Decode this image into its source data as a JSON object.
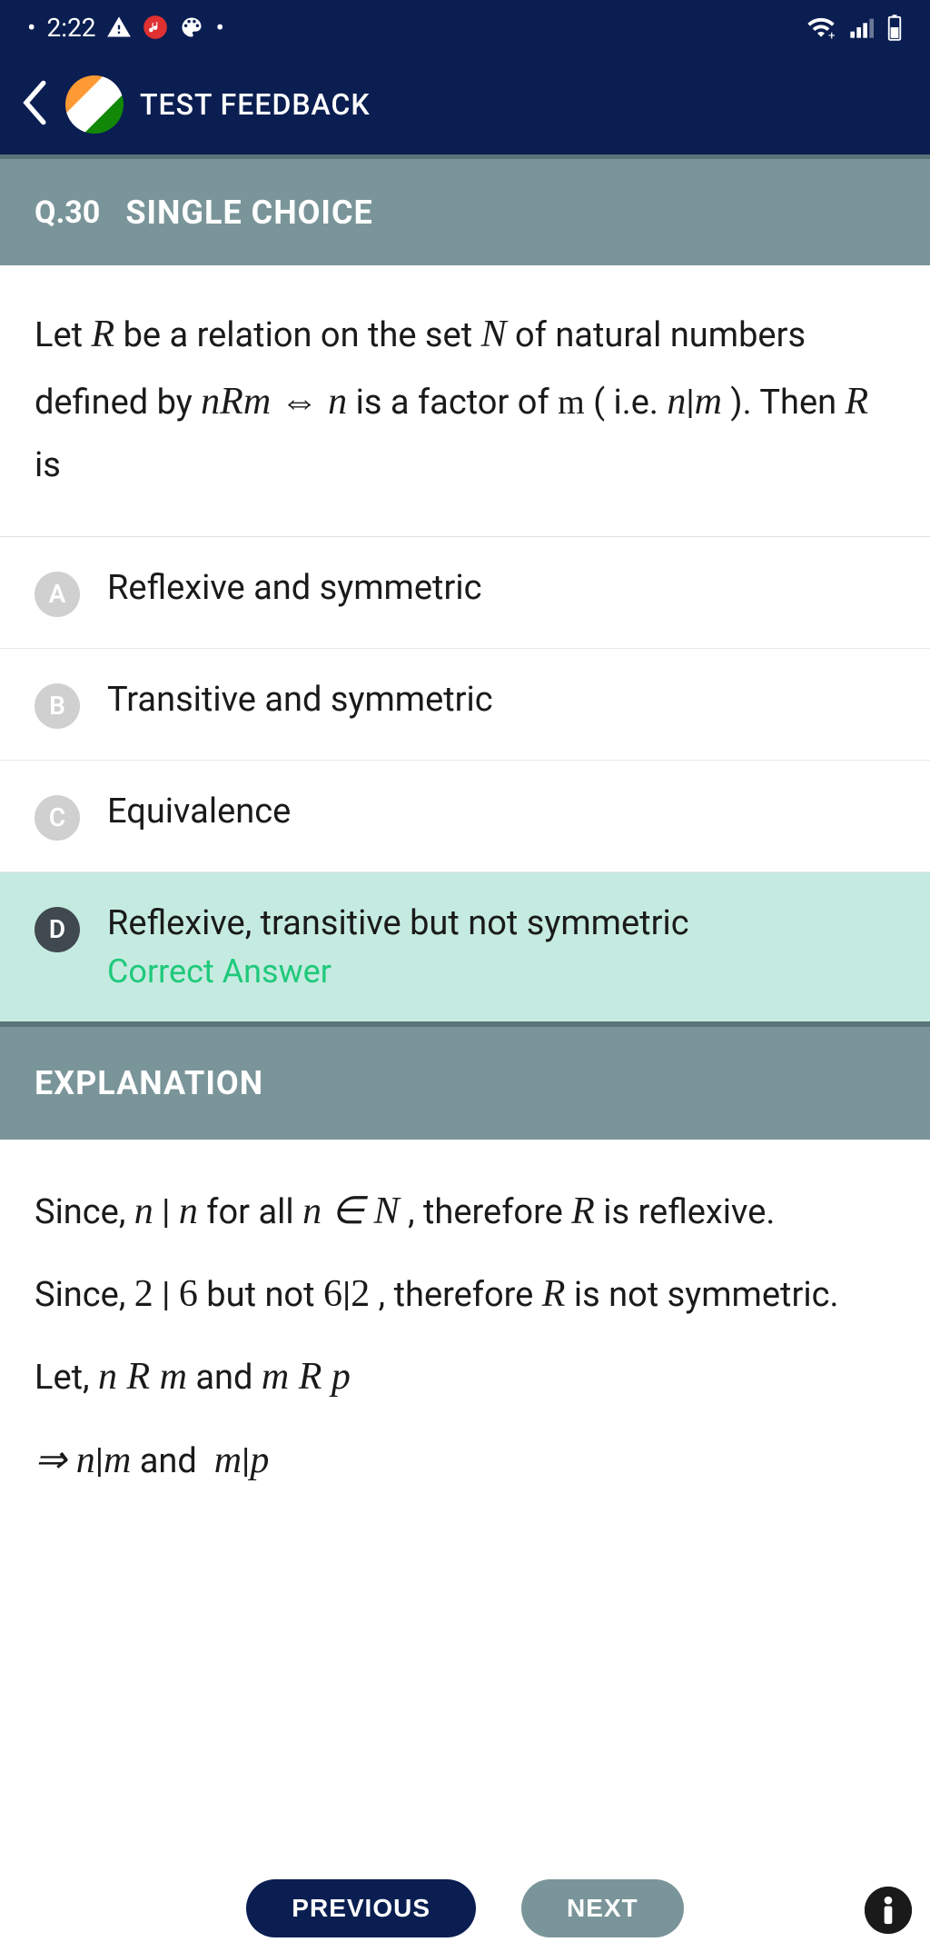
{
  "status": {
    "time": "2:22",
    "icons_left": [
      "warning",
      "music",
      "palette",
      "dot"
    ],
    "icons_right": [
      "wifi",
      "signal",
      "battery"
    ]
  },
  "header": {
    "title": "TEST FEEDBACK"
  },
  "question": {
    "number": "Q.30",
    "type": "SINGLE CHOICE",
    "body_html": "Let <span class='math'>R</span> be a relation on the set <span class='math'>N</span> of natural numbers defined by <span class='math'>nRm ⇔ n</span> is a factor of <span style='font-family:serif'>m</span> ( i.e. <span class='math'>n</span>|<span class='math'>m</span> ). Then <span class='math'>R</span> is"
  },
  "options": [
    {
      "letter": "A",
      "text": "Reflexive and symmetric",
      "correct": false
    },
    {
      "letter": "B",
      "text": "Transitive and symmetric",
      "correct": false
    },
    {
      "letter": "C",
      "text": "Equivalence",
      "correct": false
    },
    {
      "letter": "D",
      "text": "Reflexive, transitive but not symmetric",
      "correct": true
    }
  ],
  "correct_label": "Correct Answer",
  "explanation": {
    "title": "EXPLANATION",
    "lines_html": [
      "Since, <span class='math'>n</span> | <span class='math'>n</span> for all <span class='math'>n ∈ N</span> , therefore <span class='math'>R</span> is reflexive.",
      "Since, <span style='font-family:serif;font-size:42px'>2</span> | <span style='font-family:serif;font-size:42px'>6</span> but not <span style='font-family:serif;font-size:42px'>6</span>|<span style='font-family:serif;font-size:42px'>2</span> , therefore <span class='math'>R</span> is not symmetric.",
      "Let, <span class='math'>n R m</span> and <span class='math'>m R p</span>",
      "<span class='math'>⇒ n</span>|<span class='math'>m</span> and &nbsp;<span class='math'>m</span>|<span class='math'>p</span>"
    ]
  },
  "nav": {
    "previous": "PREVIOUS",
    "next": "NEXT"
  },
  "colors": {
    "header_bg": "#0a1e51",
    "section_bg": "#7a9599",
    "section_border": "#5a7579",
    "correct_bg": "#c5ebe0",
    "correct_text": "#1fc97b",
    "badge_inactive": "#d0d0d0",
    "badge_active": "#404850"
  }
}
